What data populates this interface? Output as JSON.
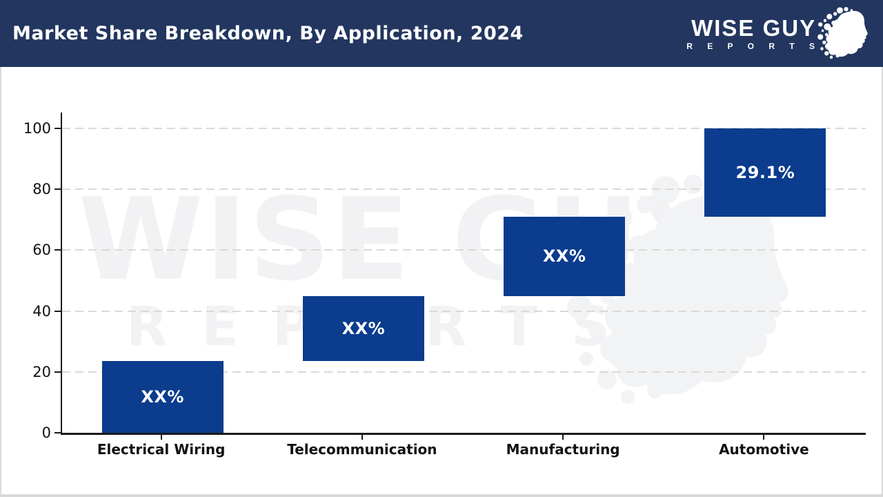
{
  "header": {
    "title": "Market Share Breakdown, By Application, 2024",
    "logo": {
      "name": "WISE GUY",
      "tagline": "R E P O R T S"
    }
  },
  "watermark": {
    "name": "WISE GUY",
    "tagline": "R E P O R T S"
  },
  "colors": {
    "header_bg": "#22365f",
    "bar": "#0b3c8d",
    "bar_label": "#ffffff",
    "grid": "#d9d9d9",
    "axis": "#1a1a1a",
    "watermark": "#f2f2f4"
  },
  "chart_data": {
    "type": "bar",
    "subtype": "waterfall-floating-segments",
    "title": "Market Share Breakdown, By Application, 2024",
    "xlabel": "",
    "ylabel": "",
    "ylim": [
      0,
      100
    ],
    "yticks": [
      0,
      20,
      40,
      60,
      80,
      100
    ],
    "grid": "horizontal-dashed",
    "legend": "none",
    "categories": [
      "Electrical Wiring",
      "Telecommunication",
      "Manufacturing",
      "Automotive"
    ],
    "segments": [
      {
        "category": "Electrical Wiring",
        "start": 0,
        "end": 23.5,
        "label": "XX%",
        "value": null
      },
      {
        "category": "Telecommunication",
        "start": 23.5,
        "end": 45,
        "label": "XX%",
        "value": null
      },
      {
        "category": "Manufacturing",
        "start": 45,
        "end": 71,
        "label": "XX%",
        "value": null
      },
      {
        "category": "Automotive",
        "start": 70.9,
        "end": 100,
        "label": "29.1%",
        "value": 29.1
      }
    ]
  }
}
